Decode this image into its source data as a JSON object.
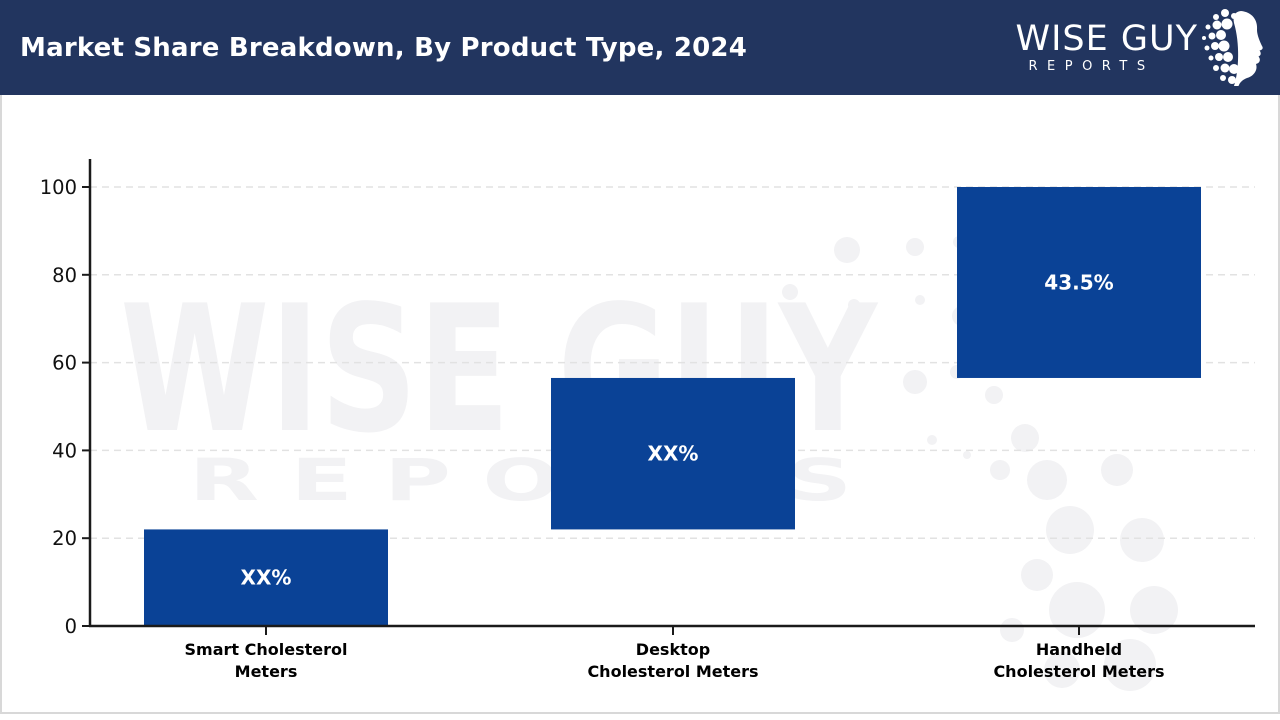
{
  "header": {
    "title": "Market Share Breakdown, By Product Type, 2024",
    "logo": {
      "line1": "WISE GUY",
      "line2": "REPORTS"
    }
  },
  "watermark": {
    "line1": "WISE GUY",
    "line2": "R E P O R T S"
  },
  "chart_data": {
    "type": "bar",
    "subtype": "floating-stacked-segments",
    "title": "Market Share Breakdown, By Product Type, 2024",
    "xlabel": "",
    "ylabel": "",
    "categories": [
      [
        "Smart Cholesterol",
        "Meters"
      ],
      [
        "Desktop",
        "Cholesterol Meters"
      ],
      [
        "Handheld",
        "Cholesterol Meters"
      ]
    ],
    "segments": [
      {
        "category": "Smart Cholesterol Meters",
        "from": 0,
        "to": 22,
        "label": "XX%"
      },
      {
        "category": "Desktop Cholesterol Meters",
        "from": 22,
        "to": 56.5,
        "label": "XX%"
      },
      {
        "category": "Handheld Cholesterol Meters",
        "from": 56.5,
        "to": 100,
        "label": "43.5%"
      }
    ],
    "yticks": [
      0,
      20,
      40,
      60,
      80,
      100
    ],
    "ylim": [
      0,
      106
    ],
    "grid": true,
    "grid_style": "dashed",
    "legend": "none"
  },
  "colors": {
    "header_bg": "#22355f",
    "bar": "#0a4296",
    "bar_label": "#ffffff",
    "grid": "#e2e2e2",
    "axis": "#1a1a1a",
    "tick_label": "#111111",
    "watermark": "#f2f2f4"
  }
}
